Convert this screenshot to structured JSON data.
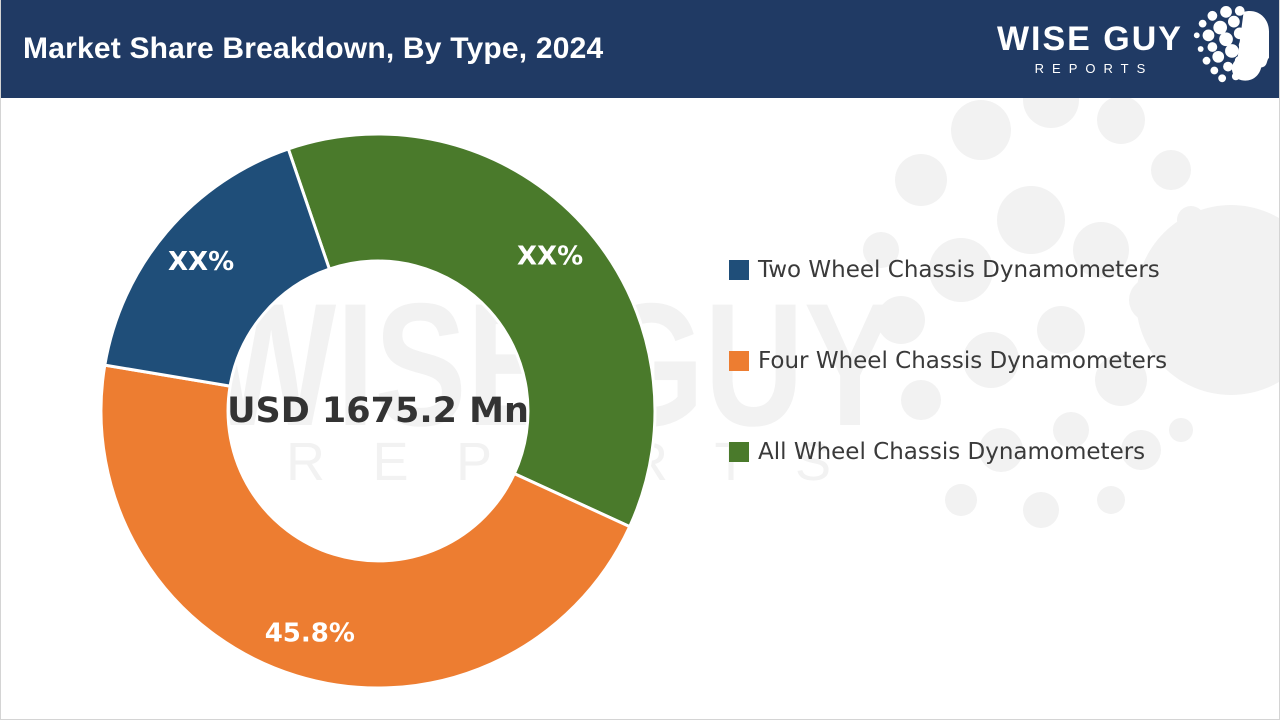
{
  "header": {
    "title": "Market Share Breakdown, By Type, 2024",
    "logo": {
      "line1": "WISE GUY",
      "line2": "REPORTS"
    }
  },
  "watermark": {
    "line1": "WISE GUY",
    "line2": "REPORTS"
  },
  "chart_data": {
    "type": "donut",
    "title": "Market Share Breakdown, By Type, 2024",
    "center_label": "USD 1675.2 Mn",
    "start_angle_deg": -18.9,
    "hole_radius_ratio": 0.54,
    "legend_position": "right",
    "segments": [
      {
        "name": "All Wheel Chassis Dynamometers",
        "value_pct": 37.1,
        "label": "XX%",
        "color": "#4a7a2b"
      },
      {
        "name": "Four Wheel Chassis Dynamometers",
        "value_pct": 45.8,
        "label": "45.8%",
        "color": "#ed7d31"
      },
      {
        "name": "Two Wheel Chassis Dynamometers",
        "value_pct": 17.1,
        "label": "XX%",
        "color": "#1f4e79"
      }
    ],
    "legend": [
      {
        "label": "Two Wheel Chassis Dynamometers",
        "color": "#1f4e79"
      },
      {
        "label": "Four Wheel Chassis Dynamometers",
        "color": "#ed7d31"
      },
      {
        "label": "All Wheel Chassis Dynamometers",
        "color": "#4a7a2b"
      }
    ]
  }
}
